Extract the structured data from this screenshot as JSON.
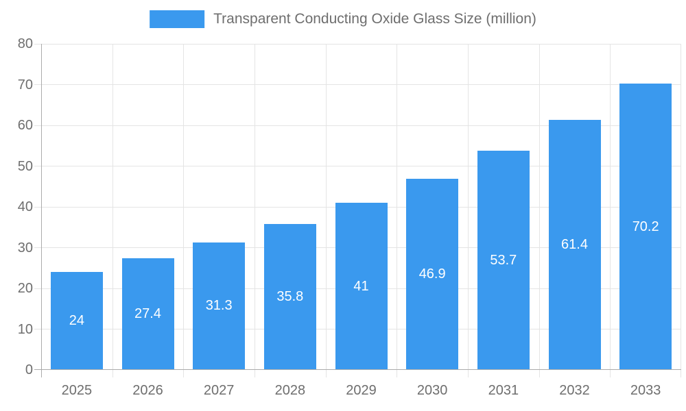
{
  "legend": {
    "items": [
      {
        "label": "Transparent Conducting Oxide Glass Size (million)",
        "color": "#3A99EE"
      }
    ]
  },
  "chart_data": {
    "type": "bar",
    "title": "",
    "categories": [
      "2025",
      "2026",
      "2027",
      "2028",
      "2029",
      "2030",
      "2031",
      "2032",
      "2033"
    ],
    "series": [
      {
        "name": "Transparent Conducting Oxide Glass Size (million)",
        "values": [
          24,
          27.4,
          31.3,
          35.8,
          41,
          46.9,
          53.7,
          61.4,
          70.2
        ]
      }
    ],
    "xlabel": "",
    "ylabel": "",
    "ylim": [
      0,
      80
    ],
    "yticks": [
      0,
      10,
      20,
      30,
      40,
      50,
      60,
      70,
      80
    ],
    "grid": true,
    "legend_position": "top",
    "value_labels_visible": true
  },
  "colors": {
    "bar": "#3A99EE",
    "grid": "#E4E4E4",
    "axis": "#ABABAB",
    "text": "#6E6E6E",
    "value_label": "#FFFFFF",
    "background": "#FFFFFF"
  }
}
